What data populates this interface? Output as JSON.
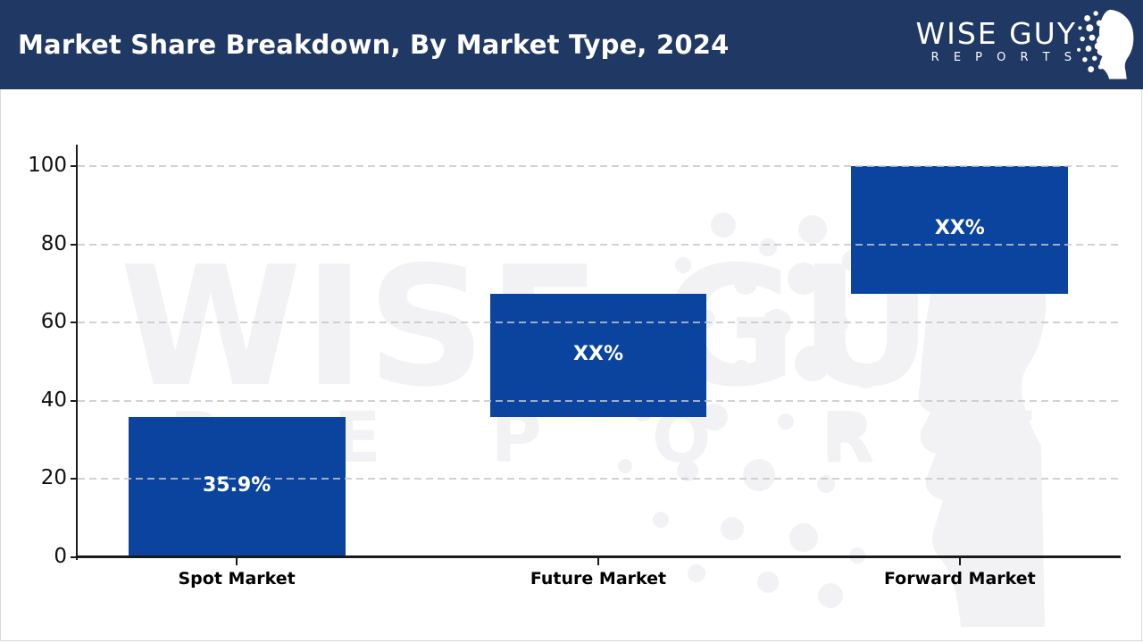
{
  "header": {
    "title": "Market Share Breakdown, By Market Type, 2024",
    "bg_color": "#1f3864",
    "logo": {
      "line1": "WISE GUY",
      "line2": "R E P O R T S",
      "head_icon": "dotted-head-profile"
    }
  },
  "watermark": {
    "line1": "WISE GUY",
    "line2": "R E P O R T S",
    "head_icon": "dotted-head-profile"
  },
  "chart_data": {
    "type": "bar",
    "subtype": "waterfall",
    "title": "Market Share Breakdown, By Market Type, 2024",
    "categories": [
      "Spot Market",
      "Future Market",
      "Forward Market"
    ],
    "segments": [
      {
        "category": "Spot Market",
        "start": 0,
        "end": 35.9,
        "label": "35.9%"
      },
      {
        "category": "Future Market",
        "start": 35.9,
        "end": 67.4,
        "label": "XX%"
      },
      {
        "category": "Forward Market",
        "start": 67.4,
        "end": 100,
        "label": "XX%"
      }
    ],
    "xlabel": "",
    "ylabel": "",
    "yticks": [
      0,
      20,
      40,
      60,
      80,
      100
    ],
    "ylim": [
      0,
      105.5
    ],
    "grid": true,
    "gridline_style": "dashed",
    "legend_position": "none",
    "bar_color": "#0a449e",
    "bar_label_color": "#ffffff",
    "axis_color": "#1a1a1a"
  }
}
